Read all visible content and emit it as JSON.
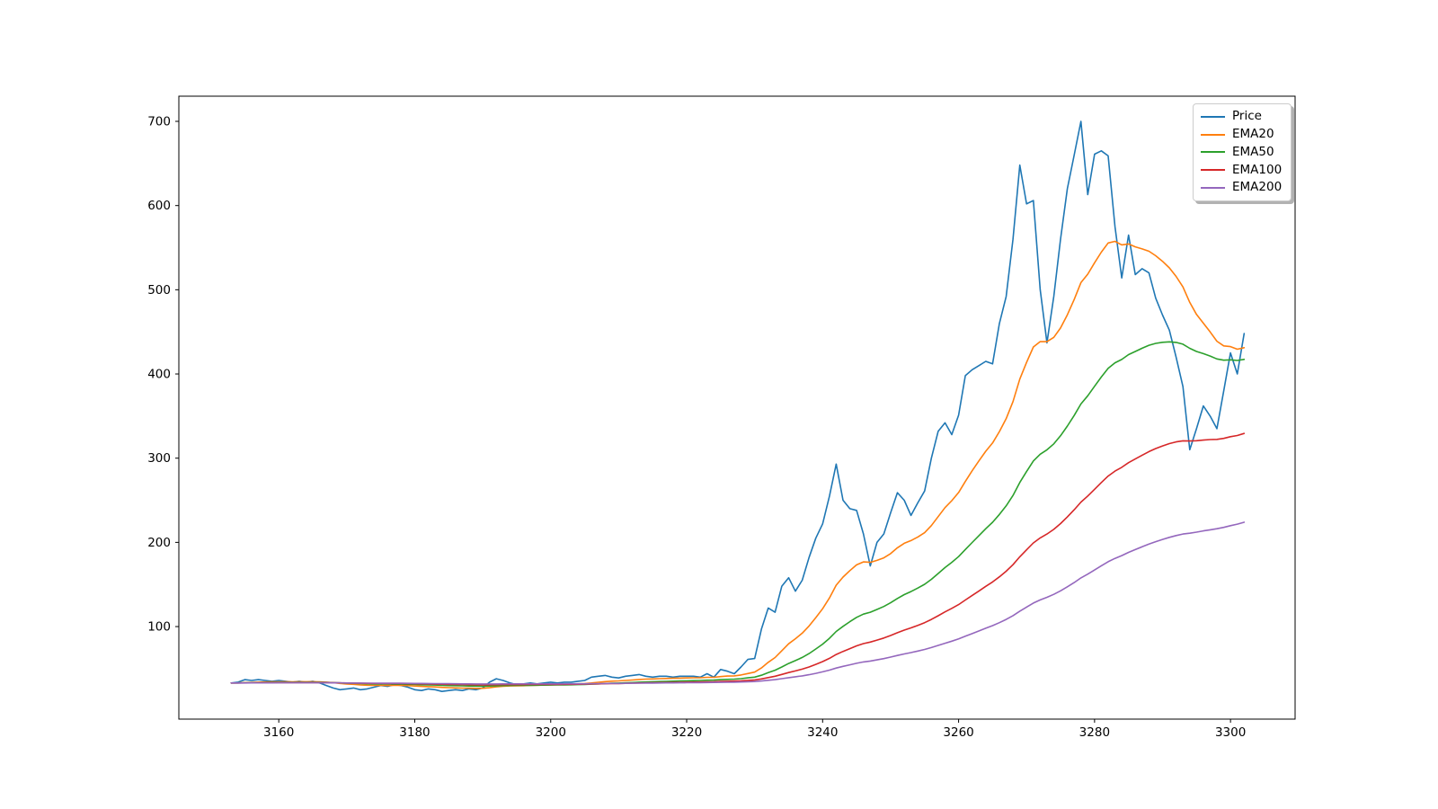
{
  "figure": {
    "background": "#ffffff"
  },
  "chart_data": {
    "type": "line",
    "title": "",
    "xlabel": "",
    "ylabel": "",
    "grid": false,
    "legend_position": "upper right",
    "xlim": [
      3145.3,
      3309.5
    ],
    "ylim": [
      -9.9,
      729.9
    ],
    "xticks": [
      3160,
      3180,
      3200,
      3220,
      3240,
      3260,
      3280,
      3300
    ],
    "yticks": [
      100,
      200,
      300,
      400,
      500,
      600,
      700
    ],
    "x_start": 3153,
    "x_step": 1,
    "price": [
      33,
      34,
      37,
      36,
      37,
      36,
      35,
      36,
      35,
      34,
      35,
      34,
      35,
      33,
      30,
      27,
      25,
      26,
      27,
      25,
      26,
      28,
      30,
      29,
      31,
      30,
      28,
      25,
      24,
      26,
      25,
      23,
      24,
      25,
      24,
      26,
      25,
      27,
      34,
      38,
      36,
      33,
      31,
      32,
      33,
      32,
      33,
      34,
      33,
      34,
      34,
      35,
      36,
      40,
      41,
      42,
      40,
      39,
      41,
      42,
      43,
      41,
      40,
      41,
      41,
      40,
      41,
      41,
      41,
      40,
      44,
      40,
      49,
      47,
      44,
      52,
      61,
      62,
      97,
      122,
      117,
      148,
      158,
      142,
      155,
      182,
      205,
      222,
      255,
      293,
      250,
      240,
      238,
      210,
      172,
      200,
      210,
      235,
      259,
      250,
      232,
      247,
      261,
      300,
      332,
      342,
      328,
      351,
      398,
      405,
      410,
      415,
      412,
      460,
      492,
      560,
      648,
      602,
      606,
      500,
      437,
      492,
      560,
      620,
      660,
      700,
      613,
      661,
      665,
      659,
      575,
      514,
      565,
      518,
      525,
      520,
      490,
      470,
      452,
      420,
      385,
      310,
      335,
      362,
      350,
      335,
      380,
      425,
      400,
      448
    ],
    "series": [
      {
        "name": "Price",
        "color": "#1f77b4",
        "source": "price"
      },
      {
        "name": "EMA20",
        "color": "#ff7f0e",
        "source": "ema",
        "span": 20
      },
      {
        "name": "EMA50",
        "color": "#2ca02c",
        "source": "ema",
        "span": 50
      },
      {
        "name": "EMA100",
        "color": "#d62728",
        "source": "ema",
        "span": 100
      },
      {
        "name": "EMA200",
        "color": "#9467bd",
        "source": "ema",
        "span": 200
      }
    ]
  }
}
